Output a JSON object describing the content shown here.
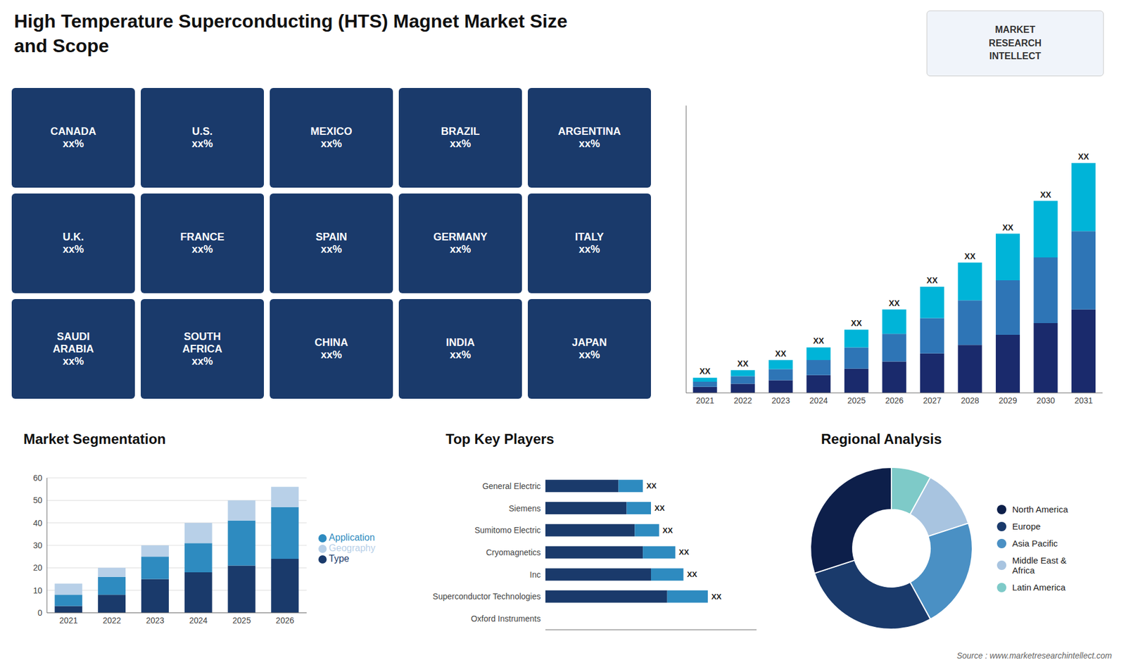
{
  "chart_data": [
    {
      "type": "bar",
      "title": "High Temperature Superconducting (HTS) Magnet Market Size\nand Scope",
      "annotations": [
        "Source : www.marketresearchintellect.com"
      ],
      "categories": [
        2021,
        2022,
        2023,
        2024,
        2025,
        2026,
        2027,
        2028,
        2029,
        2030,
        2031
      ],
      "stacked": true,
      "series": [
        {
          "color": "#1a2a6c",
          "values": [
            1.2,
            1.8,
            2.5,
            3.5,
            4.8,
            6.2,
            7.8,
            9.5,
            11.5,
            13.8,
            16.5
          ]
        },
        {
          "color": "#2e75b6",
          "values": [
            1.0,
            1.5,
            2.2,
            3.0,
            4.2,
            5.5,
            7.0,
            8.8,
            10.8,
            13.0,
            15.5
          ]
        },
        {
          "color": "#00b4d8",
          "values": [
            0.8,
            1.2,
            1.8,
            2.5,
            3.5,
            4.8,
            6.2,
            7.5,
            9.2,
            11.2,
            13.5
          ],
          "value_labels": [
            "XX",
            "XX",
            "XX",
            "XX",
            "XX",
            "XX",
            "XX",
            "XX",
            "XX",
            "XX",
            "XX"
          ]
        }
      ],
      "ylim": [
        0,
        56.875
      ],
      "tick_labels": "x",
      "data_labels": true,
      "grid": false
    },
    {
      "type": "map",
      "color": "#1a3a6b",
      "annotations": [
        "CANADA\nxx%",
        "U.S.\nxx%",
        "MEXICO\nxx%",
        "BRAZIL\nxx%",
        "ARGENTINA\nxx%",
        "U.K.\nxx%",
        "FRANCE\nxx%",
        "SPAIN\nxx%",
        "GERMANY\nxx%",
        "ITALY\nxx%",
        "SAUDI\nARABIA\nxx%",
        "SOUTH\nAFRICA\nxx%",
        "CHINA\nxx%",
        "INDIA\nxx%",
        "JAPAN\nxx%"
      ]
    },
    {
      "type": "logo",
      "annotations": [
        "MARKET",
        "RESEARCH",
        "INTELLECT"
      ]
    },
    {
      "type": "bar",
      "title": "Market Segmentation",
      "categories": [
        2021,
        2022,
        2023,
        2024,
        2025,
        2026
      ],
      "stacked": true,
      "series": [
        {
          "name": "Type",
          "color": "#1a3a6b",
          "values": [
            3,
            8,
            15,
            18,
            21,
            24
          ]
        },
        {
          "name": "Application",
          "color": "#2e8bc0",
          "values": [
            5,
            8,
            10,
            13,
            20,
            23
          ]
        },
        {
          "name": "Geography",
          "color": "#b8d0e8",
          "values": [
            5,
            4,
            5,
            9,
            9,
            9
          ]
        }
      ],
      "ylim": [
        0,
        60
      ],
      "yticks": [
        0,
        10,
        20,
        30,
        40,
        50,
        60
      ],
      "grid": true,
      "legend": "right"
    },
    {
      "type": "bar",
      "title": "Top Key Players",
      "orientation": "horizontal",
      "stacked": true,
      "categories": [
        "Oxford Instruments",
        "Superconductor Technologies",
        "Inc",
        "Cryomagnetics",
        "Sumitomo Electric",
        "Siemens",
        "General Electric"
      ],
      "series": [
        {
          "color": "#1a3a6b",
          "values": [
            0.0,
            7.5,
            6.5,
            6.0,
            5.5,
            5.0,
            4.5
          ]
        },
        {
          "color": "#2e8bc0",
          "values": [
            0.0,
            2.5,
            2.0,
            2.0,
            1.5,
            1.5,
            1.5
          ],
          "value_labels": [
            null,
            "XX",
            "XX",
            "XX",
            "XX",
            "XX",
            "XX"
          ]
        }
      ],
      "xlim": [
        0,
        13
      ],
      "tick_labels": "y",
      "data_labels": true,
      "grid": false
    },
    {
      "type": "donut",
      "title": "Regional Analysis",
      "categories": [
        "Latin America",
        "Middle East &\nAfrica",
        "Asia Pacific",
        "Europe",
        "North America"
      ],
      "values": [
        8,
        12,
        22,
        28,
        30
      ],
      "colors": [
        "#7ecac8",
        "#a8c4e0",
        "#4a90c4",
        "#1a3a6b",
        "#0d1f4a"
      ],
      "legend": "right"
    }
  ]
}
